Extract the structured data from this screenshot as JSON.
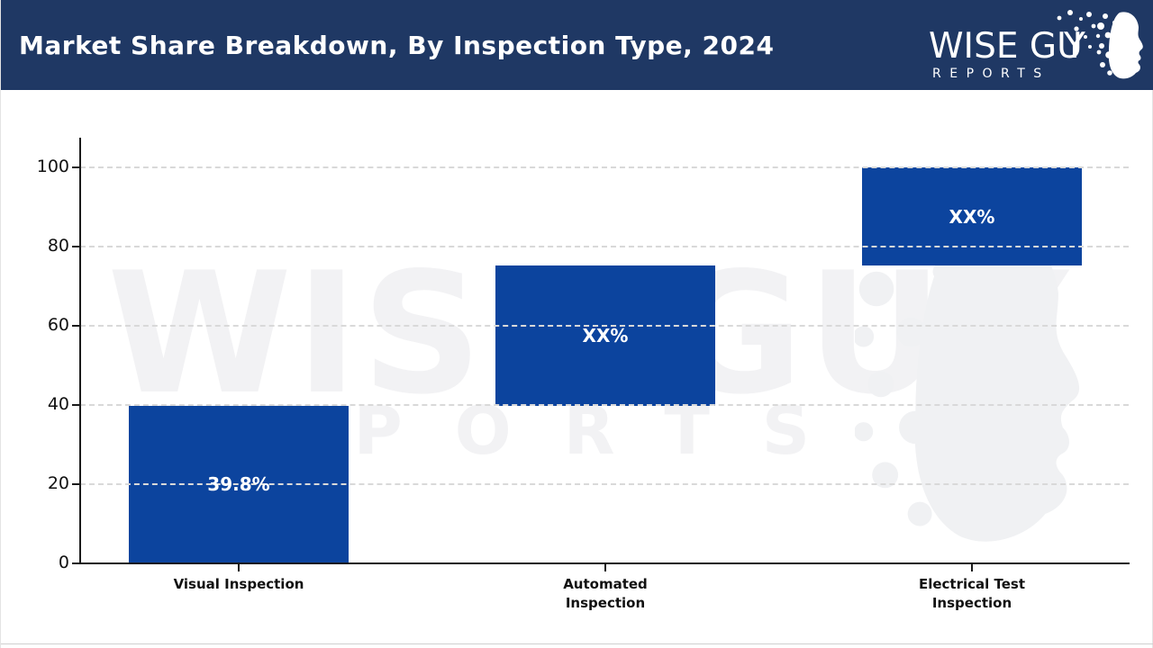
{
  "header": {
    "title": "Market Share Breakdown, By Inspection Type, 2024",
    "bg_color": "#1f3864",
    "logo": {
      "wordmark": "WISE GU",
      "wordmark_y": "Y",
      "subtext": "REPORTS"
    }
  },
  "watermark": {
    "line1": "WISE GUY",
    "line2": "REPORTS"
  },
  "chart_data": {
    "type": "bar",
    "subtype": "waterfall",
    "title": "Market Share Breakdown, By Inspection Type, 2024",
    "categories": [
      "Visual Inspection",
      "Automated Inspection",
      "Electrical Test Inspection"
    ],
    "category_lines": [
      [
        "Visual Inspection"
      ],
      [
        "Automated",
        "Inspection"
      ],
      [
        "Electrical Test",
        "Inspection"
      ]
    ],
    "segments": [
      {
        "category": "Visual Inspection",
        "start": 0,
        "end": 39.8,
        "label": "39.8%"
      },
      {
        "category": "Automated Inspection",
        "start": 39.8,
        "end": 75.2,
        "label": "XX%"
      },
      {
        "category": "Electrical Test Inspection",
        "start": 75.2,
        "end": 100,
        "label": "XX%"
      }
    ],
    "ylim": [
      0,
      100
    ],
    "yticks": [
      0,
      20,
      40,
      60,
      80,
      100
    ],
    "xlabel": "",
    "ylabel": "",
    "legend": "none",
    "grid": "horizontal-dashed",
    "bar_color": "#0c449e",
    "bar_label_color": "#ffffff",
    "axis_color": "#1a1a1a",
    "grid_color": "#d9d9d9"
  }
}
